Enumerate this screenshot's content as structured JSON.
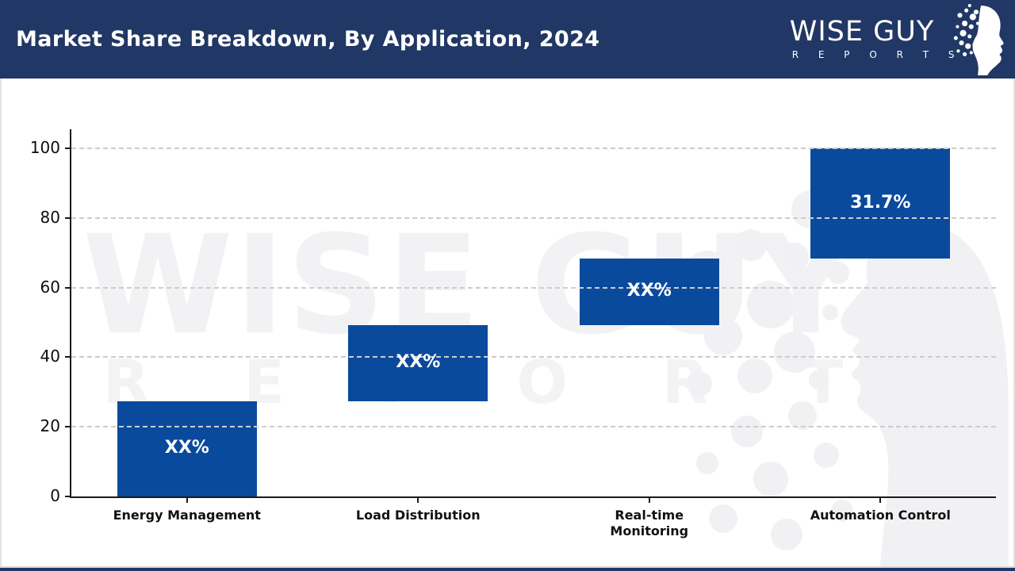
{
  "header": {
    "title": "Market Share Breakdown, By Application, 2024",
    "logo_line1": "WISE GUY",
    "logo_line2": "R E P O R T S",
    "bg_color": "#213765"
  },
  "watermark": {
    "line1": "WISE GUY",
    "line2": "R E P O R T S"
  },
  "chart_data": {
    "type": "bar",
    "variant": "waterfall-segments",
    "title": "Market Share Breakdown, By Application, 2024",
    "categories": [
      "Energy Management",
      "Load Distribution",
      "Real-time Monitoring",
      "Automation Control"
    ],
    "category_lines": [
      [
        "Energy Management"
      ],
      [
        "Load Distribution"
      ],
      [
        "Real-time",
        "Monitoring"
      ],
      [
        "Automation Control"
      ]
    ],
    "segments": [
      {
        "category": "Energy Management",
        "start": 0,
        "end": 27.3,
        "label": "XX%"
      },
      {
        "category": "Load Distribution",
        "start": 27.3,
        "end": 49.2,
        "label": "XX%"
      },
      {
        "category": "Real-time Monitoring",
        "start": 49.2,
        "end": 68.3,
        "label": "XX%"
      },
      {
        "category": "Automation Control",
        "start": 68.3,
        "end": 100,
        "label": "31.7%"
      }
    ],
    "y_ticks": [
      0,
      20,
      40,
      60,
      80,
      100
    ],
    "ylim": [
      0,
      105
    ],
    "xlabel": "",
    "ylabel": "",
    "bar_color": "#0a4a9d",
    "grid": "horizontal-dashed-over-bars",
    "gridline_color": "#cdcdcd",
    "axis_color": "#1a1a1a",
    "label_color_inside_bars": "#ffffff"
  }
}
